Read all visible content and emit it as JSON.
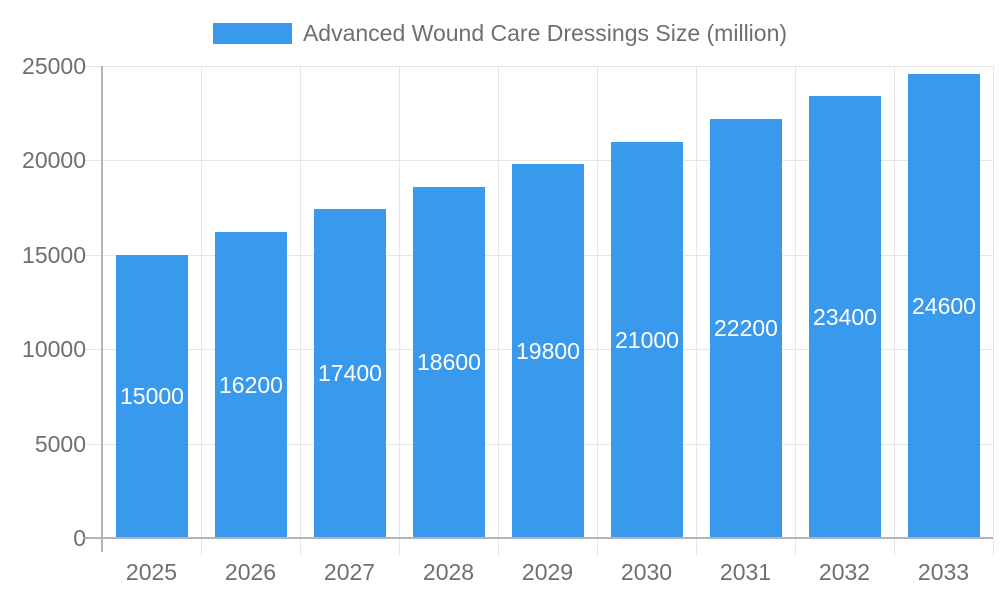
{
  "legend": {
    "label": "Advanced Wound Care Dressings Size (million)"
  },
  "colors": {
    "bar": "#3999ec",
    "grid": "#e6e6e6",
    "axis": "#b3b3b3",
    "tick_label": "#6f6f6f",
    "bar_label": "#ffffff",
    "background": "#ffffff"
  },
  "chart_data": {
    "type": "bar",
    "title": "Advanced Wound Care Dressings Size (million)",
    "categories": [
      "2025",
      "2026",
      "2027",
      "2028",
      "2029",
      "2030",
      "2031",
      "2032",
      "2033"
    ],
    "series": [
      {
        "name": "Advanced Wound Care Dressings Size (million)",
        "values": [
          15000,
          16200,
          17400,
          18600,
          19800,
          21000,
          22200,
          23400,
          24600
        ]
      }
    ],
    "bar_value_labels": [
      "15000",
      "16200",
      "17400",
      "18600",
      "19800",
      "21000",
      "22200",
      "23400",
      "24600"
    ],
    "xlabel": "",
    "ylabel": "",
    "ylim": [
      0,
      25000
    ],
    "yticks": [
      0,
      5000,
      10000,
      15000,
      20000,
      25000
    ],
    "ytick_labels": [
      "0",
      "5000",
      "10000",
      "15000",
      "20000",
      "25000"
    ],
    "grid": true,
    "legend_position": "top",
    "bar_value_labels_position": "center"
  }
}
